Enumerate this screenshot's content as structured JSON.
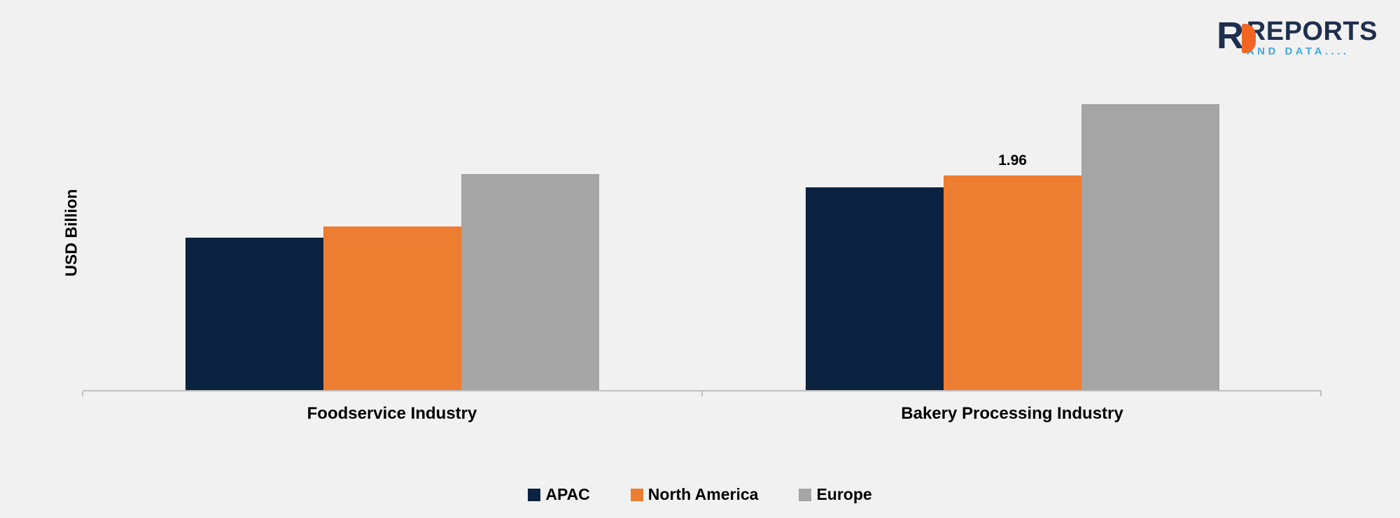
{
  "background_color": "#f1f1f1",
  "logo": {
    "icon_letter": "R",
    "title": "REPORTS",
    "subtitle": "AND DATA....",
    "navy": "#1e2f4f",
    "blue": "#3fa9e0",
    "orange": "#f26522"
  },
  "chart_data": {
    "type": "bar",
    "title": "",
    "xlabel": "",
    "ylabel": "USD Billion",
    "categories": [
      "Foodservice Industry",
      "Bakery Processing Industry"
    ],
    "series": [
      {
        "name": "APAC",
        "color": "#0b2240",
        "values": [
          1.39,
          1.85
        ]
      },
      {
        "name": "North America",
        "color": "#ed7d31",
        "values": [
          1.49,
          1.96
        ]
      },
      {
        "name": "Europe",
        "color": "#a5a5a5",
        "values": [
          1.97,
          2.61
        ]
      }
    ],
    "data_labels": [
      [
        null,
        null
      ],
      [
        null,
        "1.96"
      ],
      [
        null,
        null
      ]
    ],
    "ylim": [
      0,
      2.8
    ],
    "grid": false,
    "legend_position": "bottom",
    "axis_color": "#bfbfbf"
  }
}
